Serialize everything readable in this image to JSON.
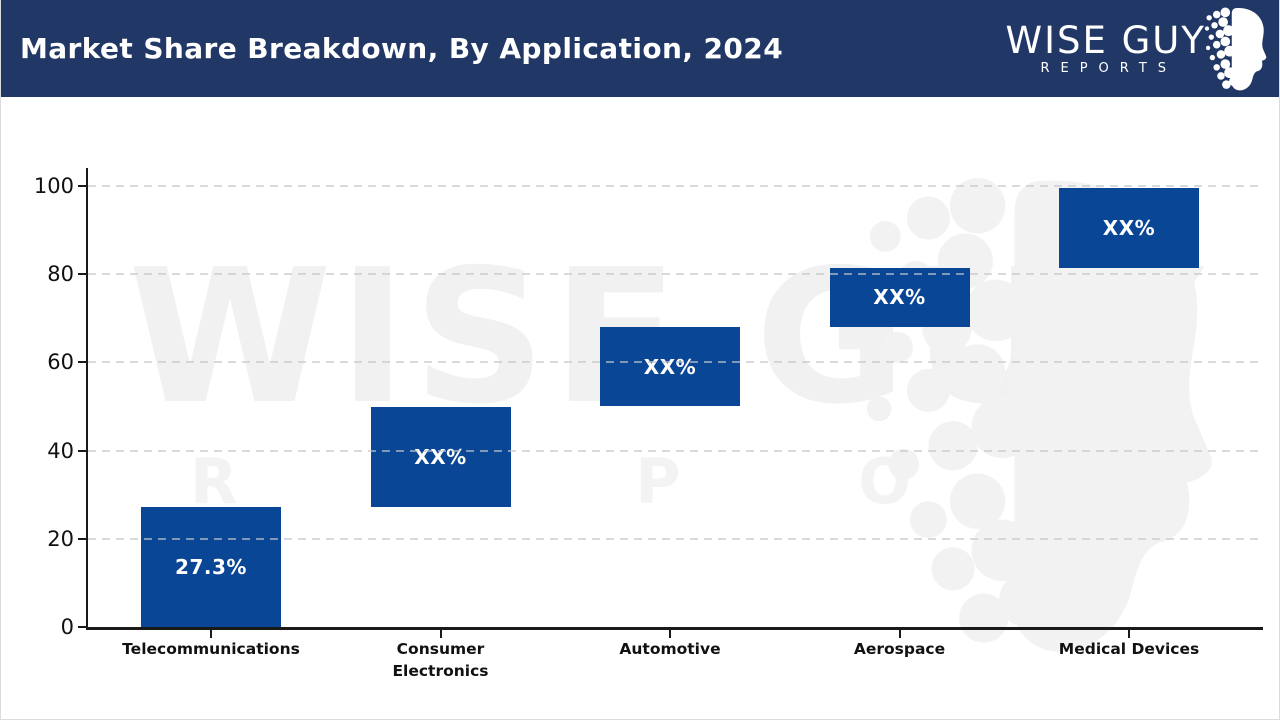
{
  "header": {
    "title": "Market Share Breakdown, By Application, 2024",
    "logo": {
      "name": "WISE GUY",
      "sub": "REPORTS"
    },
    "bg_color": "#213766"
  },
  "watermark": {
    "line1": "WISE GUY",
    "line2": "R E P O R T S"
  },
  "chart_data": {
    "type": "bar",
    "subtype": "waterfall",
    "title": "Market Share Breakdown, By Application, 2024",
    "categories": [
      "Telecommunications",
      "Consumer\nElectronics",
      "Automotive",
      "Aerospace",
      "Medical Devices"
    ],
    "segments": [
      {
        "category": "Telecommunications",
        "start": 0,
        "end": 27.3,
        "label": "27.3%"
      },
      {
        "category": "Consumer Electronics",
        "start": 27.3,
        "end": 50,
        "label": "XX%"
      },
      {
        "category": "Automotive",
        "start": 50,
        "end": 68,
        "label": "XX%"
      },
      {
        "category": "Aerospace",
        "start": 68,
        "end": 81.5,
        "label": "XX%"
      },
      {
        "category": "Medical Devices",
        "start": 81.5,
        "end": 99.5,
        "label": "XX%"
      }
    ],
    "y_ticks": [
      0,
      20,
      40,
      60,
      80,
      100
    ],
    "ylim": [
      0,
      105
    ],
    "xlabel": "",
    "ylabel": "",
    "grid": "horizontal-dashed",
    "legend": "none",
    "colors": {
      "bar": "#0a4696",
      "bar_label": "#ffffff",
      "axis": "#1a1a1a",
      "grid": "#dcdcdc",
      "tick_label": "#111111"
    }
  }
}
